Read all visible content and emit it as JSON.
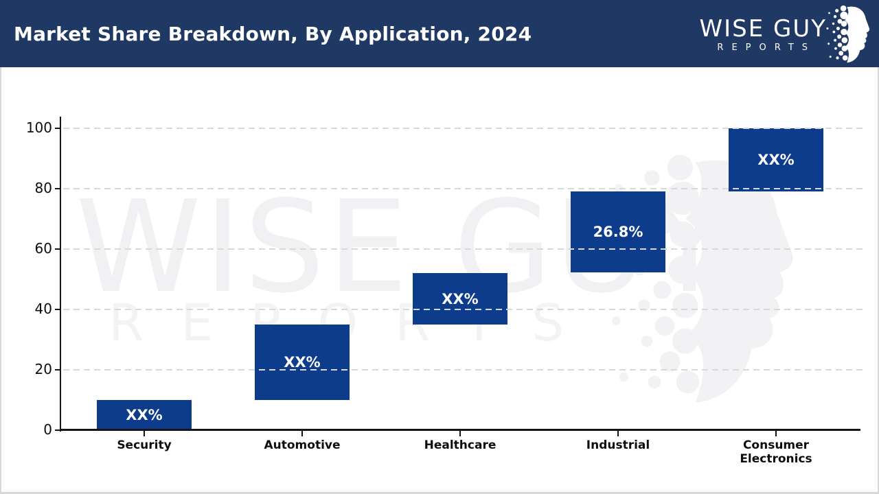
{
  "header": {
    "title": "Market Share Breakdown, By Application, 2024",
    "logo": {
      "brand": "WISE GUY",
      "sub": "REPORTS"
    }
  },
  "watermark": {
    "brand": "WISE GUY",
    "sub": "REPORTS"
  },
  "colors": {
    "header_bg": "#1f3864",
    "bar": "#0d3c8c",
    "bar_label": "#ffffff",
    "gridline": "#d9d9d9",
    "axis": "#151515",
    "watermark": "#f1f1f4",
    "border": "#d8d8d8"
  },
  "chart_data": {
    "type": "bar",
    "subtype": "waterfall",
    "title": "Market Share Breakdown, By Application, 2024",
    "xlabel": "",
    "ylabel": "",
    "categories": [
      "Security",
      "Automotive",
      "Healthcare",
      "Industrial",
      "Consumer Electronics"
    ],
    "segments": [
      {
        "category": "Security",
        "start": 0,
        "end": 10.0,
        "value": 10.0,
        "label": "XX%"
      },
      {
        "category": "Automotive",
        "start": 10.0,
        "end": 34.9,
        "value": 24.9,
        "label": "XX%"
      },
      {
        "category": "Healthcare",
        "start": 34.9,
        "end": 52.1,
        "value": 17.2,
        "label": "XX%"
      },
      {
        "category": "Industrial",
        "start": 52.2,
        "end": 79.0,
        "value": 26.8,
        "label": "26.8%"
      },
      {
        "category": "Consumer Electronics",
        "start": 79.0,
        "end": 100.0,
        "value": 21.0,
        "label": "XX%"
      }
    ],
    "yticks": [
      0,
      20,
      40,
      60,
      80,
      100
    ],
    "ylim": [
      0,
      105
    ],
    "grid": "dashed-horizontal",
    "legend": "none"
  }
}
